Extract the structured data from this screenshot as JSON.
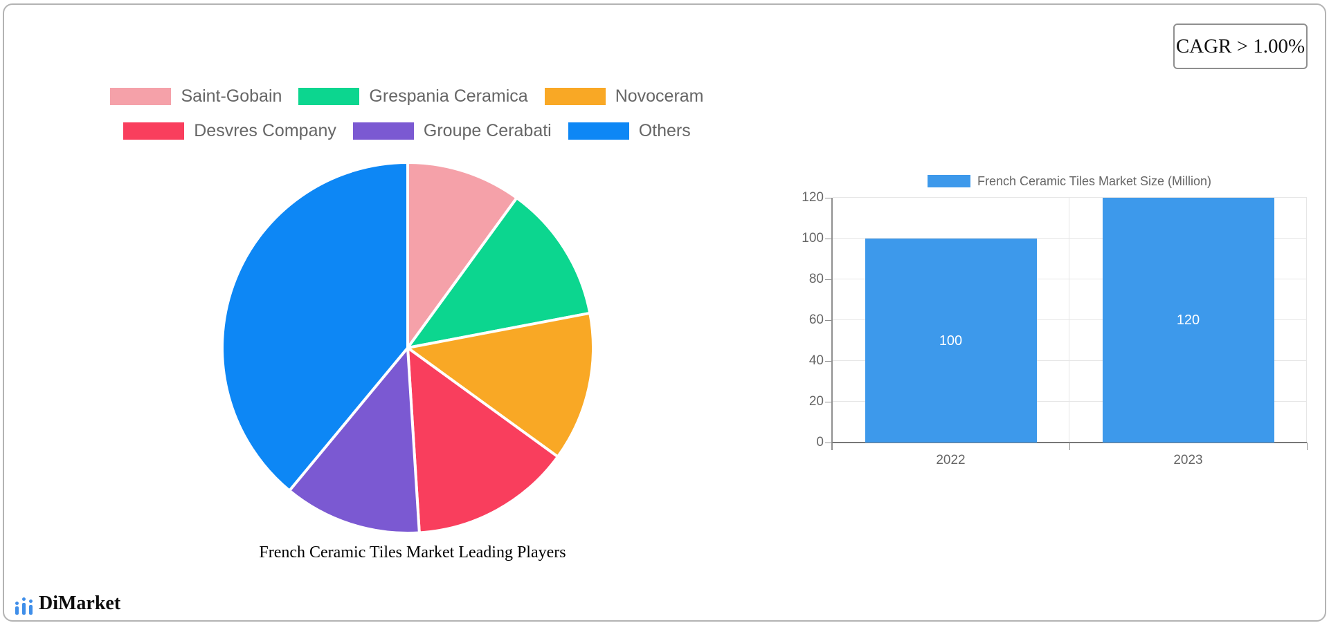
{
  "badge": {
    "cagr": "CAGR > 1.00%"
  },
  "brand": {
    "name": "DiMarket",
    "icon": "bar-chart-logo-icon"
  },
  "chart_data": [
    {
      "type": "pie",
      "title": "French Ceramic Tiles Market Leading Players",
      "labels": [
        "Saint-Gobain",
        "Grespania Ceramica",
        "Novoceram",
        "Desvres Company",
        "Groupe Cerabati",
        "Others"
      ],
      "values": [
        10,
        12,
        13,
        14,
        12,
        39
      ],
      "unit": "percent",
      "colors": [
        "#F5A1A9",
        "#0CD68F",
        "#F9A825",
        "#F93E5D",
        "#7B59D2",
        "#0D87F5"
      ],
      "legend_position": "top",
      "legend_rows": [
        3,
        3
      ],
      "start_angle_deg": 0,
      "direction": "clockwise",
      "slice_border_color": "#ffffff"
    },
    {
      "type": "bar",
      "legend": "French Ceramic Tiles Market Size (Million)",
      "legend_position": "top",
      "categories": [
        "2022",
        "2023"
      ],
      "values": [
        100,
        120
      ],
      "value_labels": [
        "100",
        "120"
      ],
      "bar_color": "#3D99EB",
      "value_label_color": "#ffffff",
      "ylim": [
        0,
        120
      ],
      "yticks": [
        0,
        20,
        40,
        60,
        80,
        100,
        120
      ],
      "grid": true
    }
  ]
}
